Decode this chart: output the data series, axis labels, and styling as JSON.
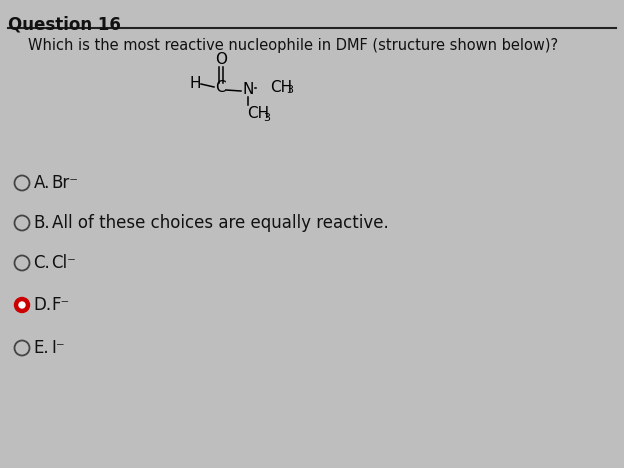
{
  "title": "Question 16",
  "question_text": "Which is the most reactive nucleophile in DMF (structure shown below)?",
  "background_color": "#bebebe",
  "text_color": "#111111",
  "options": [
    {
      "label": "A.",
      "text": "Br⁻",
      "selected": false
    },
    {
      "label": "B.",
      "text": "All of these choices are equally reactive.",
      "selected": false
    },
    {
      "label": "C.",
      "text": "Cl⁻",
      "selected": false
    },
    {
      "label": "D.",
      "text": "F⁻",
      "selected": true
    },
    {
      "label": "E.",
      "text": "I⁻",
      "selected": false
    }
  ],
  "selected_color": "#cc0000",
  "font_size_title": 12,
  "font_size_question": 10.5,
  "font_size_options": 12,
  "font_size_structure": 11
}
